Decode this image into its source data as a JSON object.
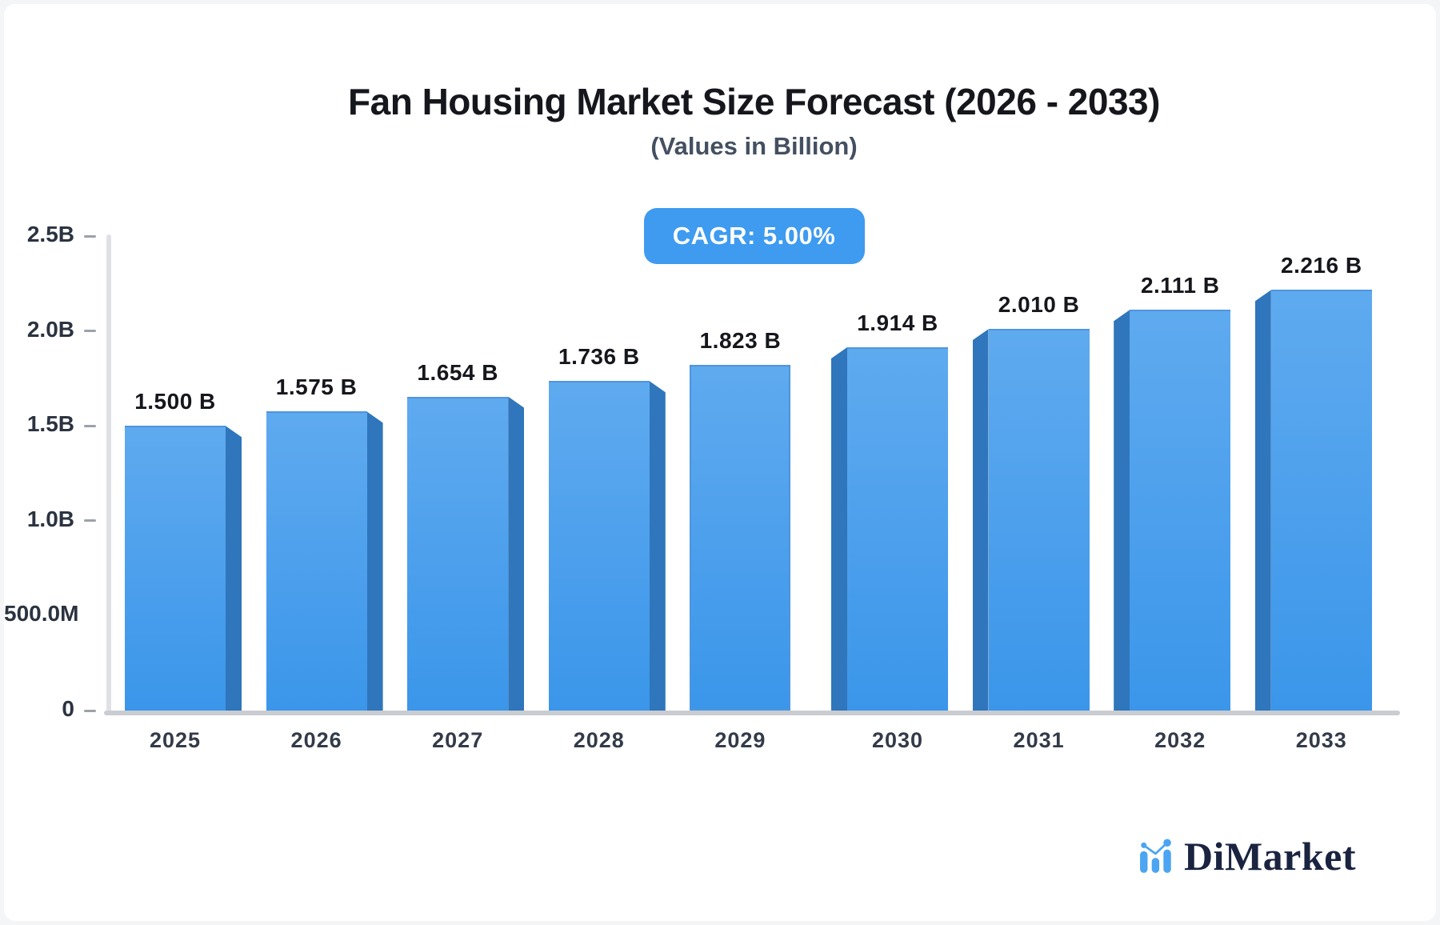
{
  "header": {
    "title": "Fan Housing Market Size Forecast (2026 - 2033)",
    "subtitle": "(Values in Billion)",
    "cagr_badge": "CAGR: 5.00%"
  },
  "chart_data": {
    "type": "bar",
    "title": "Fan Housing Market Size Forecast (2026 - 2033)",
    "subtitle": "(Values in Billion)",
    "cagr_label": "CAGR: 5.00%",
    "categories": [
      "2025",
      "2026",
      "2027",
      "2028",
      "2029",
      "2030",
      "2031",
      "2032",
      "2033"
    ],
    "values": [
      1.5,
      1.575,
      1.654,
      1.736,
      1.823,
      1.914,
      2.01,
      2.111,
      2.216
    ],
    "bar_labels": [
      "1.500 B",
      "1.575 B",
      "1.654 B",
      "1.736 B",
      "1.823 B",
      "1.914 B",
      "2.010 B",
      "2.111 B",
      "2.216 B"
    ],
    "ylim": [
      0,
      2.5
    ],
    "yticks": [
      {
        "label": "2.5B",
        "value": 2.5,
        "dash": true
      },
      {
        "label": "2.0B",
        "value": 2.0,
        "dash": true
      },
      {
        "label": "1.5B",
        "value": 1.5,
        "dash": true
      },
      {
        "label": "1.0B",
        "value": 1.0,
        "dash": true
      },
      {
        "label": "500.0M",
        "value": 0.5,
        "dash": false
      },
      {
        "label": "0",
        "value": 0.0,
        "dash": true
      }
    ],
    "grid": false,
    "legend": "none",
    "colors": {
      "bar_face_top": "#5FAAEF",
      "bar_face_bottom": "#3B96EA",
      "bar_side": "#2F76BC",
      "bar_border": "#4E95DD",
      "badge_bg": "#3E9BF0",
      "axis_line": "#DFE2E5",
      "baseline": "#C9CCD1",
      "tick": "#9BA1A9"
    }
  },
  "logo": {
    "name": "DiMarket"
  }
}
